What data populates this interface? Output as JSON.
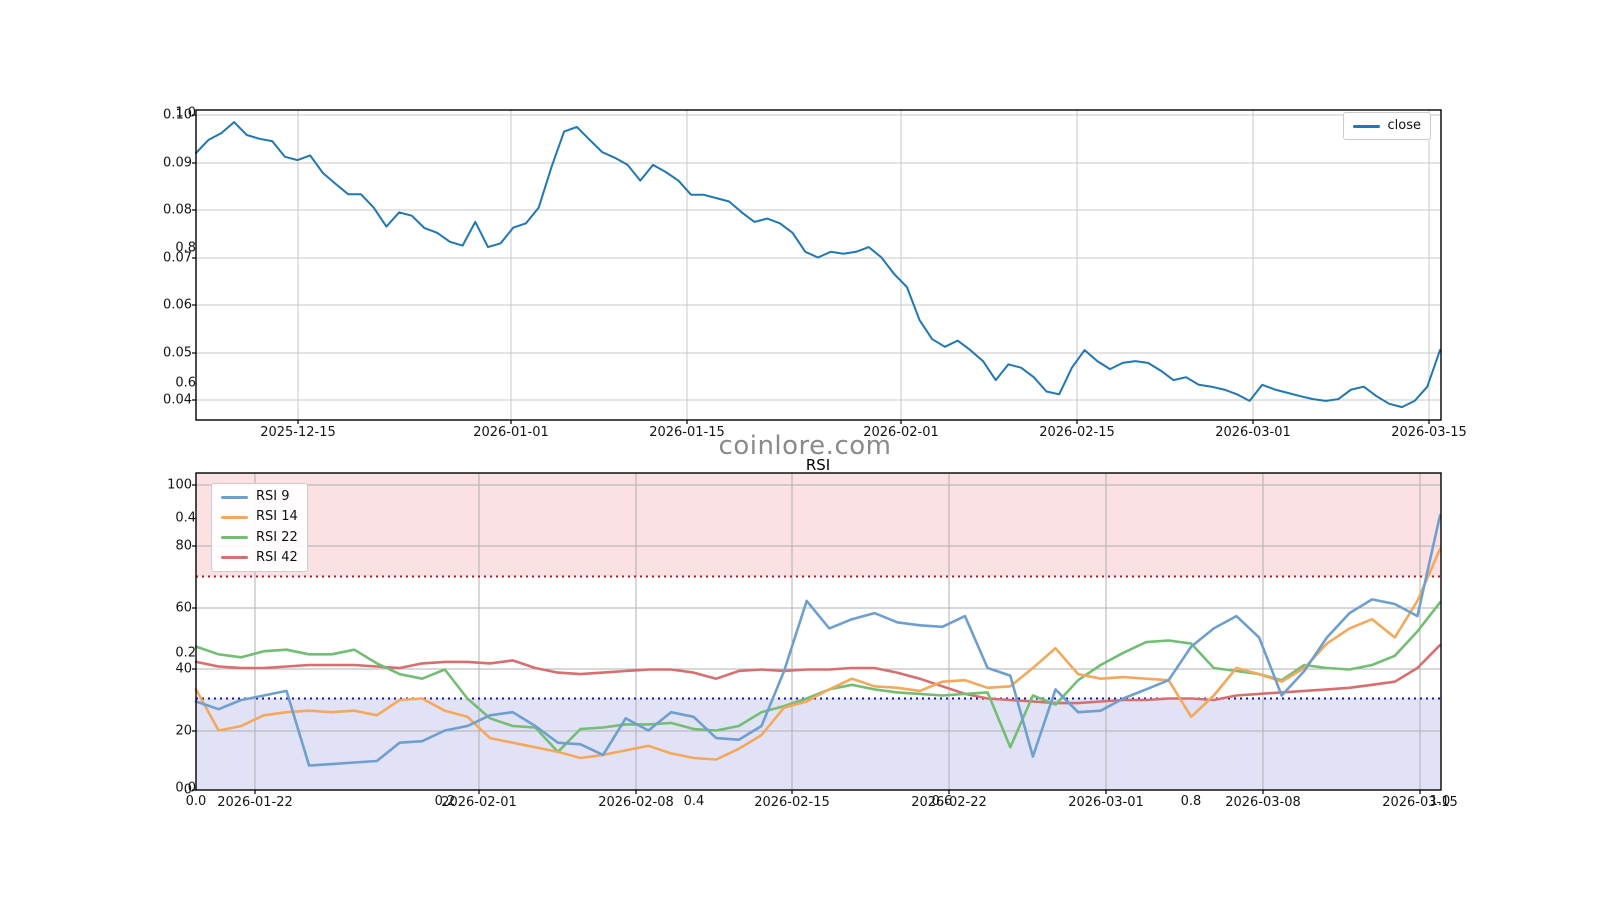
{
  "watermark": "coinlore.com",
  "overlay_axis": {
    "x_tick_labels": [
      "0.0",
      "0.2",
      "0.4",
      "0.6",
      "0.8",
      "1.0"
    ],
    "y_tick_labels": [
      "1.0",
      "0.8",
      "0.6",
      "0.4",
      "0.2",
      "0.0"
    ]
  },
  "chart_data": [
    {
      "type": "line",
      "title": "",
      "xlabel": "",
      "ylabel": "",
      "x_start_date": "2025-12-07",
      "x_tick_labels": [
        "2025-12-15",
        "2026-01-01",
        "2026-01-15",
        "2026-02-01",
        "2026-02-15",
        "2026-03-01",
        "2026-03-15"
      ],
      "y_tick_labels": [
        "0.10",
        "0.09",
        "0.08",
        "0.07",
        "0.06",
        "0.05",
        "0.04"
      ],
      "ylim": [
        0.0358,
        0.1011
      ],
      "grid": true,
      "legend_position": "upper right",
      "series": [
        {
          "name": "close",
          "color": "#2077b4",
          "values": [
            0.092,
            0.0948,
            0.0962,
            0.0985,
            0.0958,
            0.095,
            0.0945,
            0.0912,
            0.0905,
            0.0915,
            0.0878,
            0.0855,
            0.0833,
            0.0833,
            0.0805,
            0.0765,
            0.0795,
            0.0788,
            0.0762,
            0.0752,
            0.0733,
            0.0725,
            0.0775,
            0.0722,
            0.073,
            0.0763,
            0.0772,
            0.0805,
            0.089,
            0.0965,
            0.0975,
            0.0948,
            0.0922,
            0.091,
            0.0895,
            0.0862,
            0.0895,
            0.088,
            0.0862,
            0.0832,
            0.0832,
            0.0825,
            0.0818,
            0.0795,
            0.0775,
            0.0782,
            0.0772,
            0.0752,
            0.0712,
            0.07,
            0.0712,
            0.0708,
            0.0712,
            0.0722,
            0.07,
            0.0665,
            0.0638,
            0.0568,
            0.0528,
            0.0512,
            0.0525,
            0.0505,
            0.0482,
            0.0442,
            0.0475,
            0.0468,
            0.0448,
            0.0418,
            0.0412,
            0.0468,
            0.0505,
            0.0482,
            0.0465,
            0.0478,
            0.0482,
            0.0478,
            0.0462,
            0.0442,
            0.0448,
            0.0432,
            0.0428,
            0.0422,
            0.0412,
            0.0398,
            0.0432,
            0.0422,
            0.0415,
            0.0408,
            0.0402,
            0.0398,
            0.0402,
            0.0422,
            0.0428,
            0.0408,
            0.0392,
            0.0385,
            0.0398,
            0.0428,
            0.0505
          ]
        }
      ]
    },
    {
      "type": "line",
      "title": "RSI",
      "xlabel": "",
      "ylabel": "",
      "x_start_date": "2026-01-19",
      "x_tick_labels": [
        "2026-01-22",
        "2026-02-01",
        "2026-02-08",
        "2026-02-15",
        "2026-02-22",
        "2026-03-01",
        "2026-03-08",
        "2026-03-15"
      ],
      "y_tick_labels": [
        "100",
        "80",
        "60",
        "40",
        "20",
        "0"
      ],
      "ylim": [
        0,
        104
      ],
      "grid": true,
      "legend_position": "upper left",
      "overbought_level": 70,
      "oversold_level": 30,
      "overbought_line_color": "#cc1122",
      "oversold_line_color": "#1111bb",
      "overbought_band_color": "#fbe0e4",
      "oversold_band_color": "#e2e2f6",
      "series": [
        {
          "name": "RSI 9",
          "color": "#6f9fce",
          "values": [
            29,
            26.5,
            29.5,
            31,
            32.5,
            8,
            8.5,
            9,
            9.5,
            15.5,
            16,
            19.5,
            21,
            24.5,
            25.5,
            21,
            15.5,
            15,
            11.5,
            23.5,
            19.5,
            25.5,
            24,
            17,
            16.5,
            21,
            39,
            62,
            53,
            56,
            58,
            55,
            54,
            53.5,
            57,
            40,
            37.5,
            11,
            33,
            25.5,
            26,
            30,
            33,
            36,
            47,
            53,
            57,
            50,
            31,
            39,
            50,
            58,
            62.5,
            61,
            57,
            90
          ]
        },
        {
          "name": "RSI 14",
          "color": "#f4a85c",
          "values": [
            33,
            19.5,
            21,
            24.5,
            25.5,
            26,
            25.5,
            26,
            24.5,
            29.5,
            30,
            26,
            24,
            17,
            15.5,
            14,
            12.5,
            10.5,
            11.5,
            13,
            14.5,
            12,
            10.5,
            10,
            13.5,
            18,
            27,
            29,
            33,
            36.5,
            34,
            33.5,
            32.5,
            35.5,
            36,
            33.5,
            34,
            40,
            46.5,
            38,
            36.5,
            37,
            36.5,
            36,
            24,
            31,
            40,
            38,
            35.5,
            40,
            48,
            53,
            56,
            50,
            62,
            79
          ]
        },
        {
          "name": "RSI 22",
          "color": "#74bd74",
          "values": [
            47,
            44.5,
            43.5,
            45.5,
            46,
            44.5,
            44.5,
            46,
            41.5,
            38,
            36.5,
            39.5,
            30,
            23.5,
            21,
            20.5,
            12.5,
            20,
            20.5,
            21.5,
            21.5,
            22,
            20,
            19.5,
            21,
            25.5,
            27.5,
            30,
            33,
            34.5,
            33,
            32,
            31.5,
            31,
            31.5,
            32,
            14,
            31,
            28,
            36,
            41,
            45,
            48.5,
            49,
            48,
            40,
            39,
            38,
            36,
            41,
            40,
            39.5,
            41,
            44,
            52,
            61.5
          ]
        },
        {
          "name": "RSI 42",
          "color": "#d76f6f",
          "values": [
            42,
            40.5,
            40,
            40,
            40.5,
            41,
            41,
            41,
            40.5,
            40,
            41.5,
            42,
            42,
            41.5,
            42.5,
            40,
            38.5,
            38,
            38.5,
            39,
            39.5,
            39.5,
            38.5,
            36.5,
            39,
            39.5,
            39,
            39.5,
            39.5,
            40,
            40,
            38.5,
            36.5,
            34,
            31.5,
            30,
            29.5,
            29,
            28.5,
            28.5,
            29,
            29.5,
            29.5,
            30,
            30,
            29.5,
            31,
            31.5,
            32,
            32.5,
            33,
            33.5,
            34.5,
            35.5,
            40,
            47.5
          ]
        }
      ]
    }
  ]
}
